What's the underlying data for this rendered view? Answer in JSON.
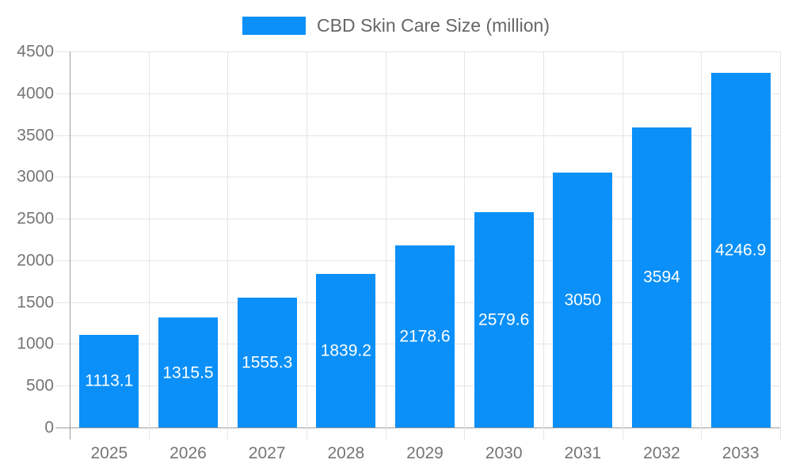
{
  "chart_data": {
    "type": "bar",
    "title": "CBD Skin Care Size (million)",
    "legend": "CBD Skin Care Size (million)",
    "legend_position": "top",
    "categories": [
      "2025",
      "2026",
      "2027",
      "2028",
      "2029",
      "2030",
      "2031",
      "2032",
      "2033"
    ],
    "values": [
      1113.1,
      1315.5,
      1555.3,
      1839.2,
      2178.6,
      2579.6,
      3050,
      3594,
      4246.9
    ],
    "value_labels": [
      "1113.1",
      "1315.5",
      "1555.3",
      "1839.2",
      "2178.6",
      "2579.6",
      "3050",
      "3594",
      "4246.9"
    ],
    "xlabel": "",
    "ylabel": "",
    "ylim": [
      0,
      4500
    ],
    "ytick_step": 500,
    "yticks": [
      0,
      500,
      1000,
      1500,
      2000,
      2500,
      3000,
      3500,
      4000,
      4500
    ],
    "grid": true,
    "bar_width_fraction": 0.75,
    "colors": {
      "bar": "#0a90f8",
      "grid": "#e5e5e5",
      "axis": "#9e9e9e",
      "tick_text": "#757575",
      "legend_text": "#666666",
      "value_label": "#ffffff"
    }
  }
}
